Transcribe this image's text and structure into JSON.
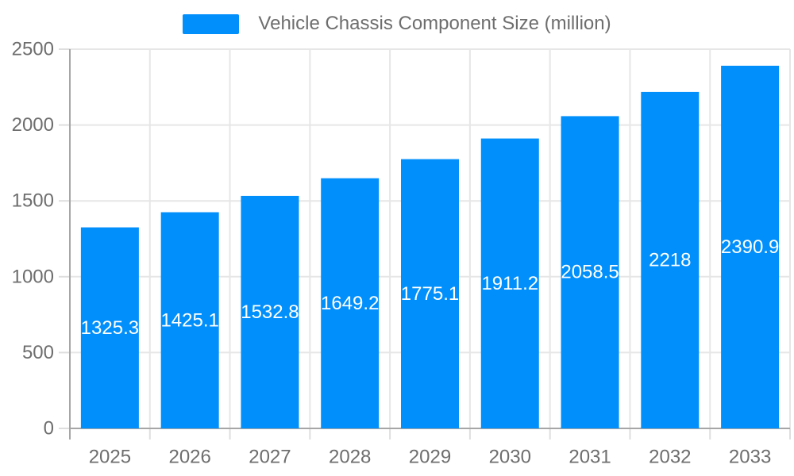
{
  "legend": {
    "label": "Vehicle Chassis Component Size (million)"
  },
  "chart_data": {
    "type": "bar",
    "title": "Vehicle Chassis Component Size (million)",
    "series_name": "Vehicle Chassis Component Size (million)",
    "categories": [
      "2025",
      "2026",
      "2027",
      "2028",
      "2029",
      "2030",
      "2031",
      "2032",
      "2033"
    ],
    "values": [
      1325.3,
      1425.1,
      1532.8,
      1649.2,
      1775.1,
      1911.2,
      2058.5,
      2218,
      2390.9
    ],
    "data_labels": [
      "1325.3",
      "1425.1",
      "1532.8",
      "1649.2",
      "1775.1",
      "1911.2",
      "2058.5",
      "2218",
      "2390.9"
    ],
    "xlabel": "",
    "ylabel": "",
    "ylim": [
      0,
      2500
    ],
    "ytick_step": 500,
    "ytick_labels": [
      "0",
      "500",
      "1000",
      "1500",
      "2000",
      "2500"
    ],
    "grid": true,
    "legend_position": "top"
  },
  "colors": {
    "bar": "#008FFB",
    "grid": "#e6e6e6",
    "axis": "#a6a6a6",
    "tick": "#dedede",
    "axis_label_text": "#6e6e6e",
    "value_label_text": "#ffffff",
    "background": "#ffffff"
  }
}
